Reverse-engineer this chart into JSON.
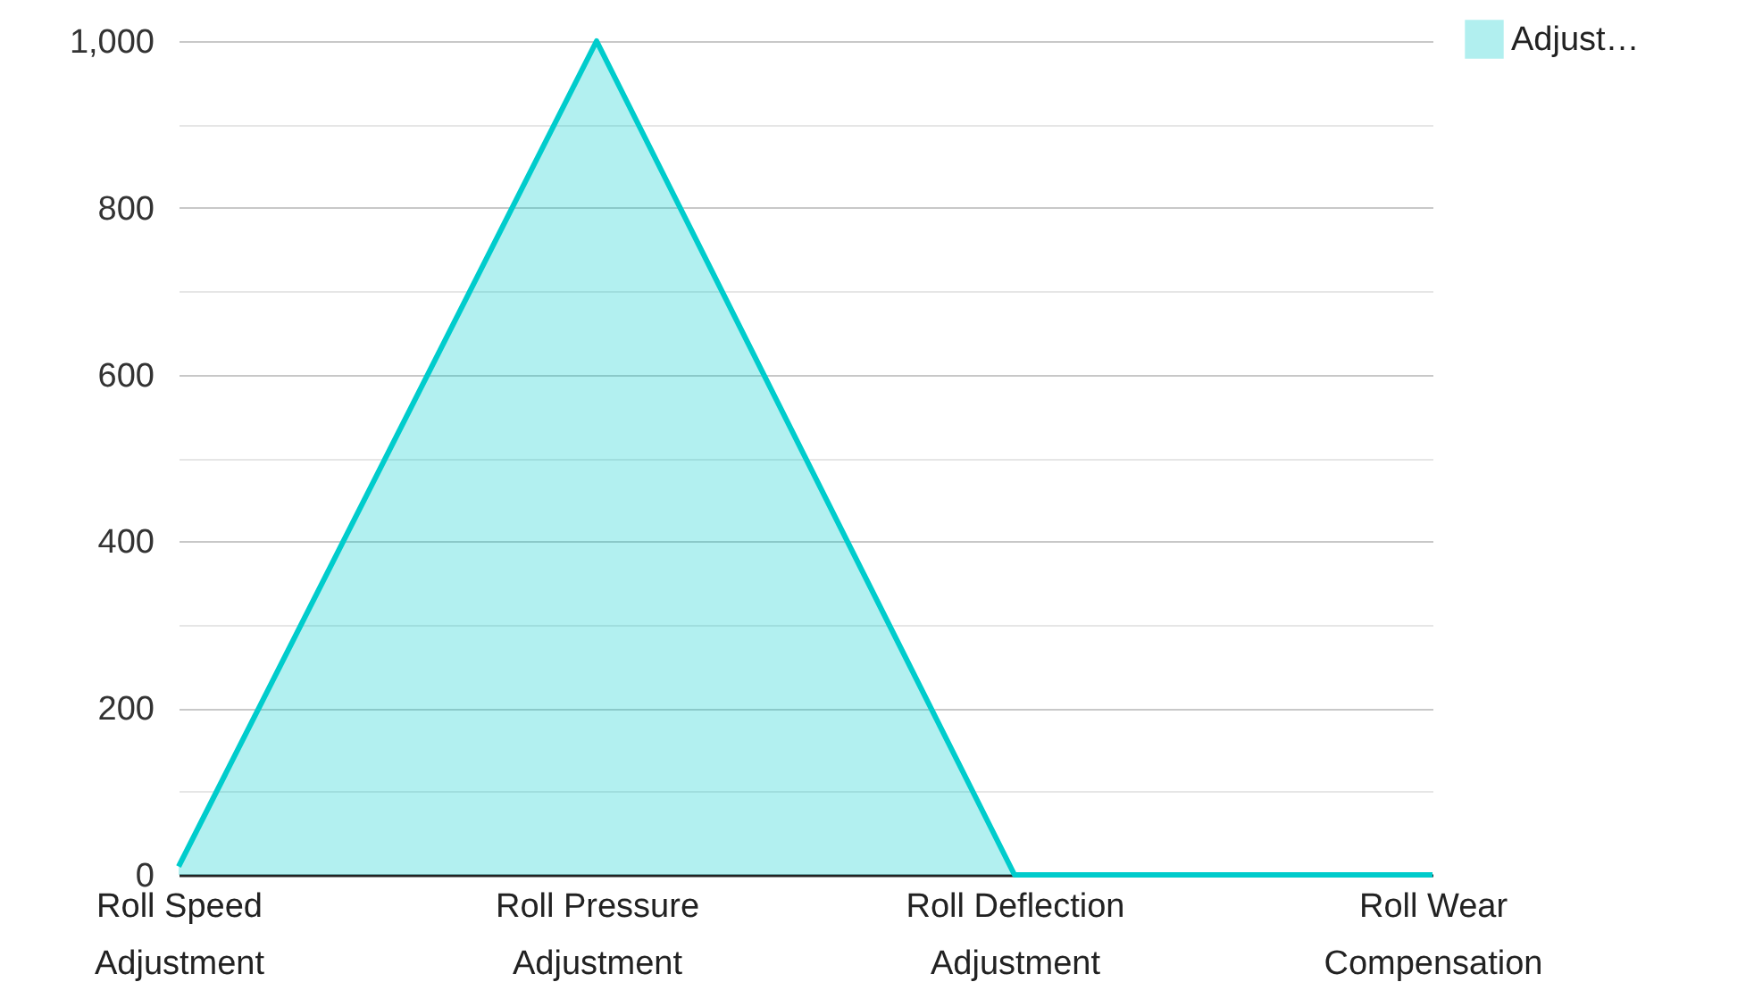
{
  "chart_data": {
    "type": "area",
    "categories": [
      "Roll Speed Adjustment",
      "Roll Pressure Adjustment",
      "Roll Deflection Adjustment",
      "Roll Wear Compensation"
    ],
    "series": [
      {
        "name": "Adjust…",
        "color": "#00cccc",
        "values": [
          10,
          1000,
          0,
          0
        ]
      }
    ],
    "ylim": [
      0,
      1000
    ],
    "yticks": [
      0,
      {
        "value": 100,
        "label": null
      },
      200,
      {
        "value": 300,
        "label": null
      },
      400,
      {
        "value": 500,
        "label": null
      },
      600,
      {
        "value": 700,
        "label": null
      },
      800,
      {
        "value": 900,
        "label": null
      },
      {
        "value": 1000,
        "label": "1,000"
      }
    ],
    "grid": "y",
    "legend": "top right"
  }
}
